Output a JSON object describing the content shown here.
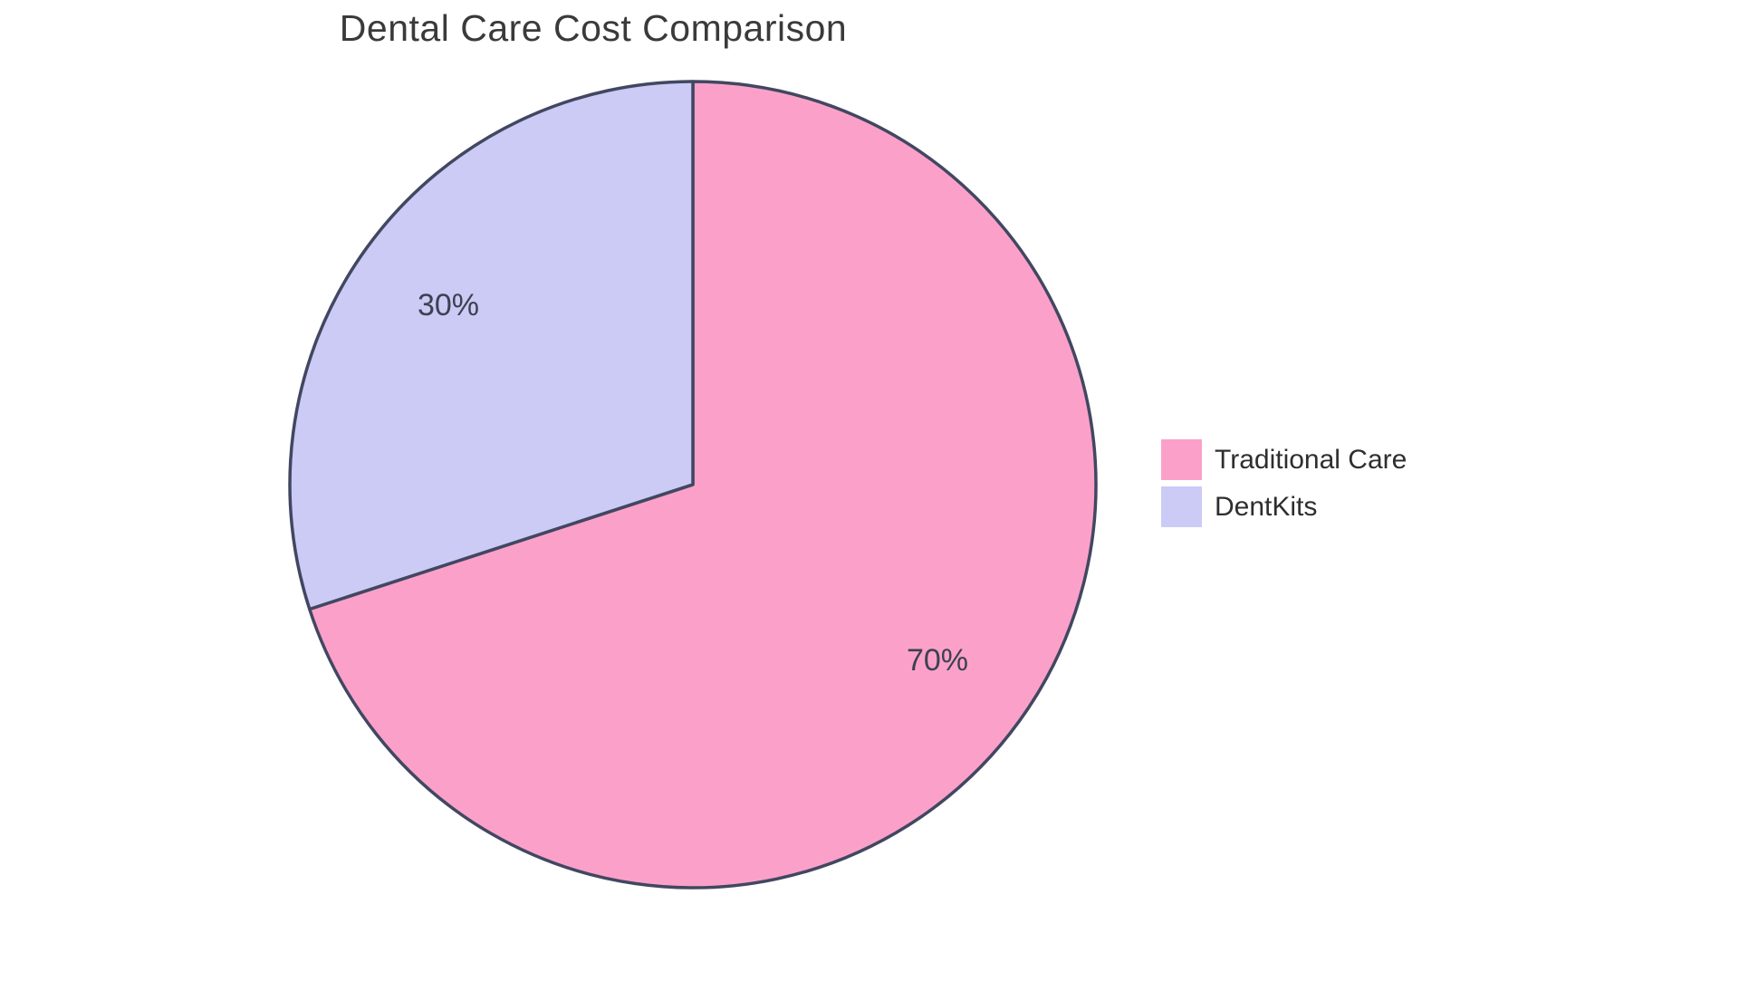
{
  "chart_data": {
    "type": "pie",
    "title": "Dental Care Cost Comparison",
    "slices": [
      {
        "label": "Traditional Care",
        "value": 70,
        "display": "70%",
        "color": "#FBA1C9"
      },
      {
        "label": "DentKits",
        "value": 30,
        "display": "30%",
        "color": "#CBCBF6"
      }
    ],
    "legend": {
      "position": "right",
      "entries": [
        "Traditional Care",
        "DentKits"
      ]
    },
    "start_angle_deg": 90,
    "rotation": "clockwise",
    "stroke_color": "#424761",
    "stroke_width": 3.5,
    "label_color": "#3d4150",
    "title_color": "#3a3a3a",
    "legend_text_color": "#2e2e2e",
    "background_color": "#ffffff"
  }
}
